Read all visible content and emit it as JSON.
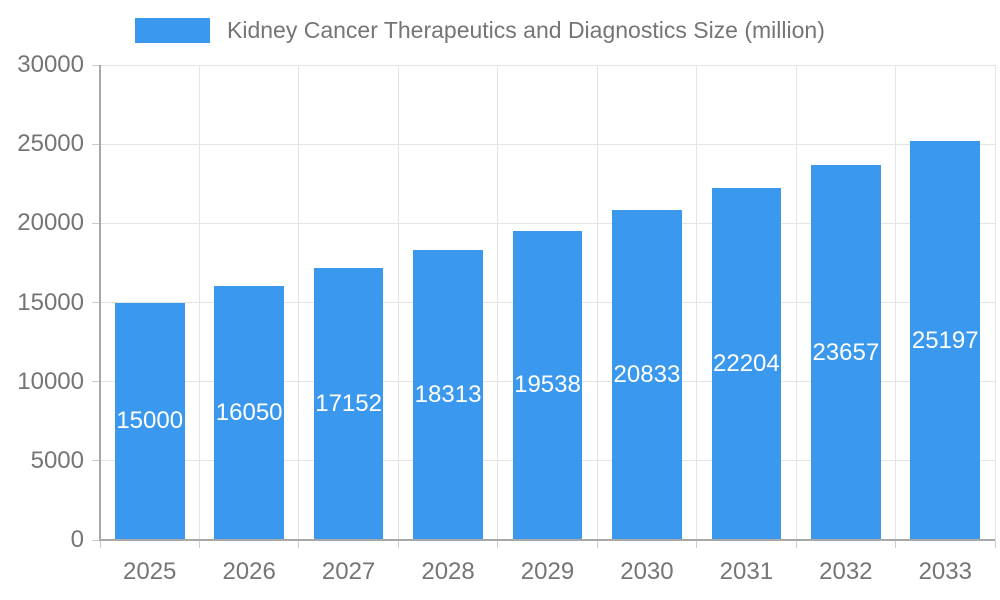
{
  "legend": {
    "position": "top"
  },
  "colors": {
    "bar": "#3A99EE",
    "axis_line": "#A8A8A8",
    "gridline": "#E4E4E4",
    "tick": "#CCCCCC",
    "tick_label": "#757575",
    "value_label": "#FFFFFF",
    "background": "#FFFFFF"
  },
  "chart_data": {
    "type": "bar",
    "title": "Kidney Cancer Therapeutics and Diagnostics Size (million)",
    "categories": [
      "2025",
      "2026",
      "2027",
      "2028",
      "2029",
      "2030",
      "2031",
      "2032",
      "2033"
    ],
    "values": [
      15000,
      16050,
      17152,
      18313,
      19538,
      20833,
      22204,
      23657,
      25197
    ],
    "xlabel": "",
    "ylabel": "",
    "ylim": [
      0,
      30000
    ],
    "ytick_step": 5000,
    "yticks": [
      "0",
      "5000",
      "10000",
      "15000",
      "20000",
      "25000",
      "30000"
    ],
    "grid": true,
    "bar_labels": true,
    "legend_position": "top"
  }
}
